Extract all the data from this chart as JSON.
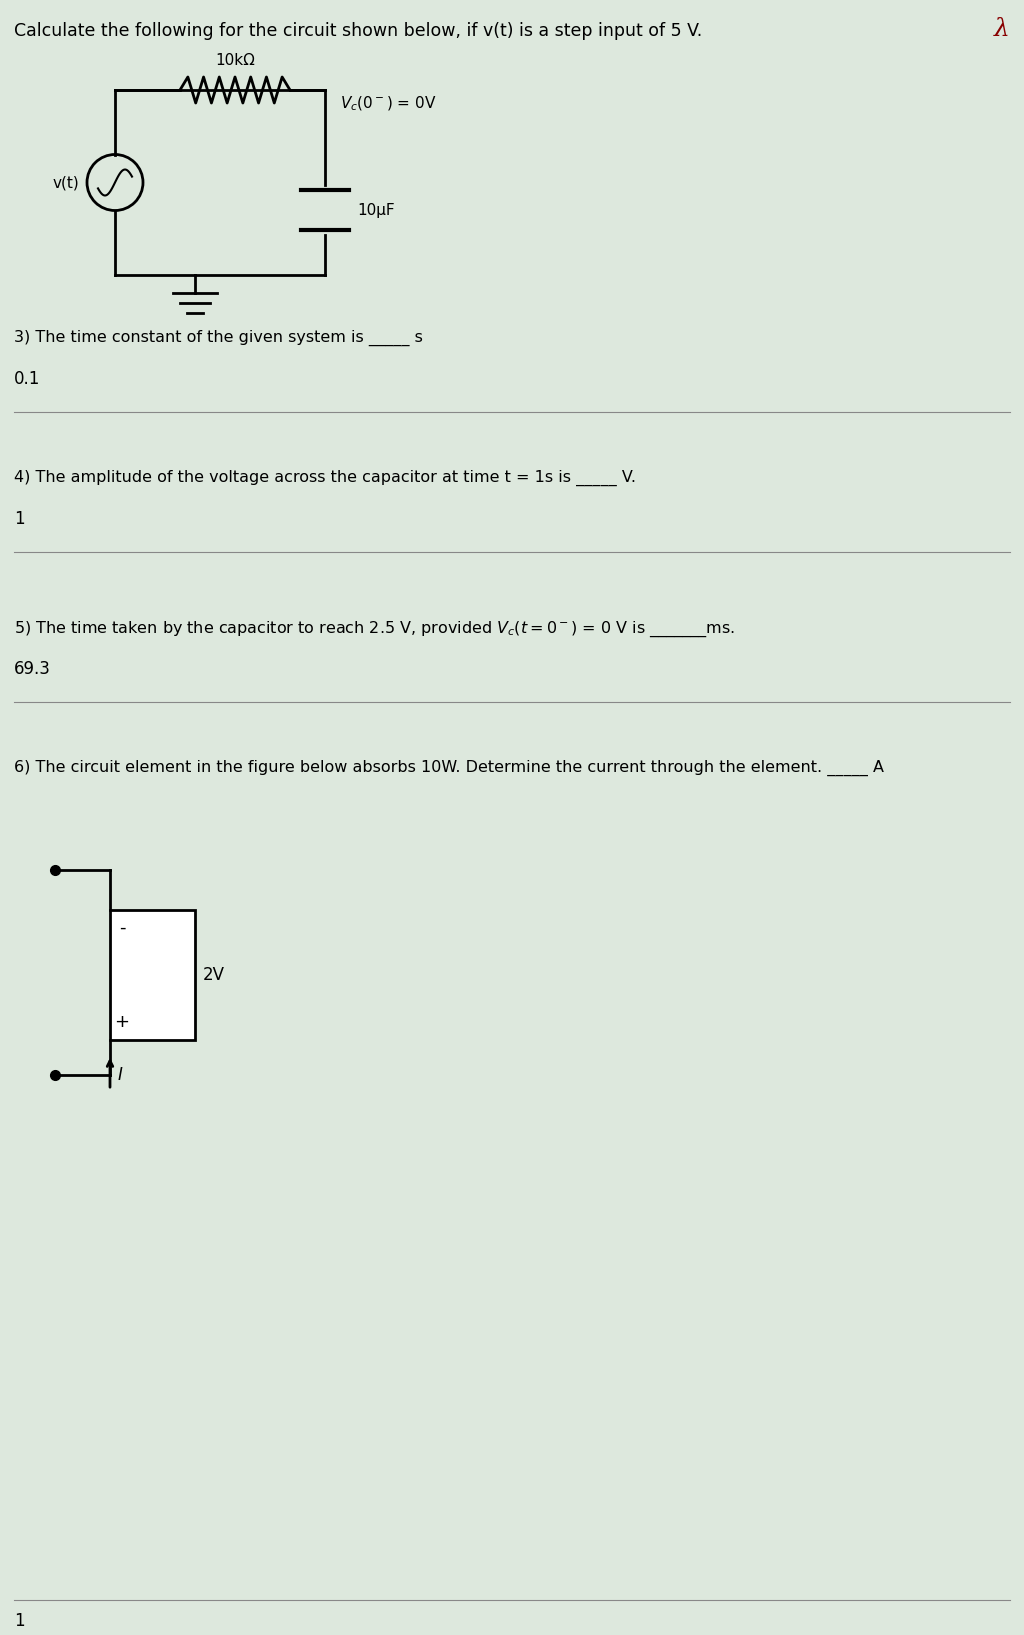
{
  "title_text": "Calculate the following for the circuit shown below, if v(t) is a step input of 5 V.",
  "handwritten_corner": "λ",
  "bg_color": "#dde8dd",
  "text_color": "#000000",
  "q3_text": "3) The time constant of the given system is _____ s",
  "q3_answer": "0.1",
  "q4_text": "4) The amplitude of the voltage across the capacitor at time t = 1s is _____ V.",
  "q4_answer": "1",
  "q5_answer": "69.3",
  "q6_text": "6) The circuit element in the figure below absorbs 10W. Determine the current through the element. _____ A",
  "footer_number": "1",
  "circuit1": {
    "resistor_label": "10kΩ",
    "vc_label": "V_c(0⁻) = 0V",
    "source_label": "v(t)",
    "capacitor_label": "10μF"
  },
  "circuit2": {
    "voltage_label": "2V",
    "plus": "+",
    "minus": "-",
    "current_label": "I"
  }
}
